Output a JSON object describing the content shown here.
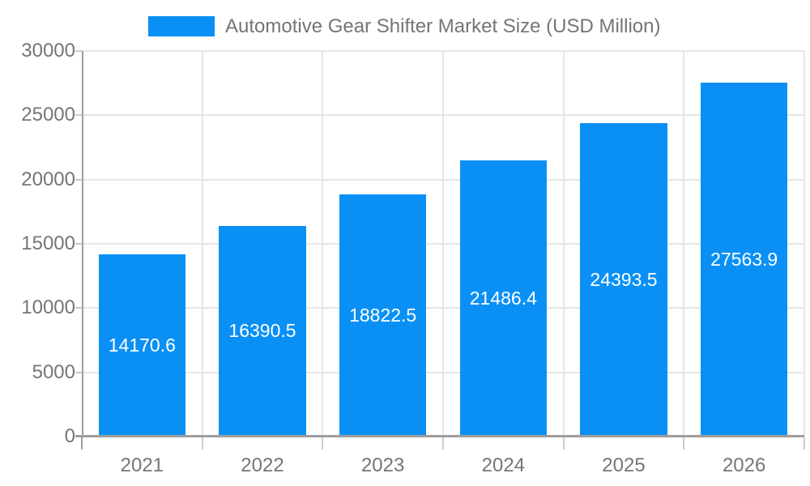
{
  "legend": {
    "label": "Automotive Gear Shifter Market Size (USD Million)"
  },
  "chart_data": {
    "type": "bar",
    "title": "Automotive Gear Shifter Market Size (USD Million)",
    "categories": [
      "2021",
      "2022",
      "2023",
      "2024",
      "2025",
      "2026"
    ],
    "values": [
      14170.6,
      16390.5,
      18822.5,
      21486.4,
      24393.5,
      27563.9
    ],
    "value_labels": [
      "14170.6",
      "16390.5",
      "18822.5",
      "21486.4",
      "24393.5",
      "27563.9"
    ],
    "xlabel": "",
    "ylabel": "",
    "ylim": [
      0,
      30000
    ],
    "y_ticks": [
      0,
      5000,
      10000,
      15000,
      20000,
      25000,
      30000
    ],
    "grid": true,
    "legend_position": "top",
    "colors": {
      "bar": "#0a90f5",
      "bar_label": "#ffffff",
      "axis_text": "#757575",
      "axis_line": "#9e9e9e",
      "gridline": "#e6e6e6"
    }
  }
}
